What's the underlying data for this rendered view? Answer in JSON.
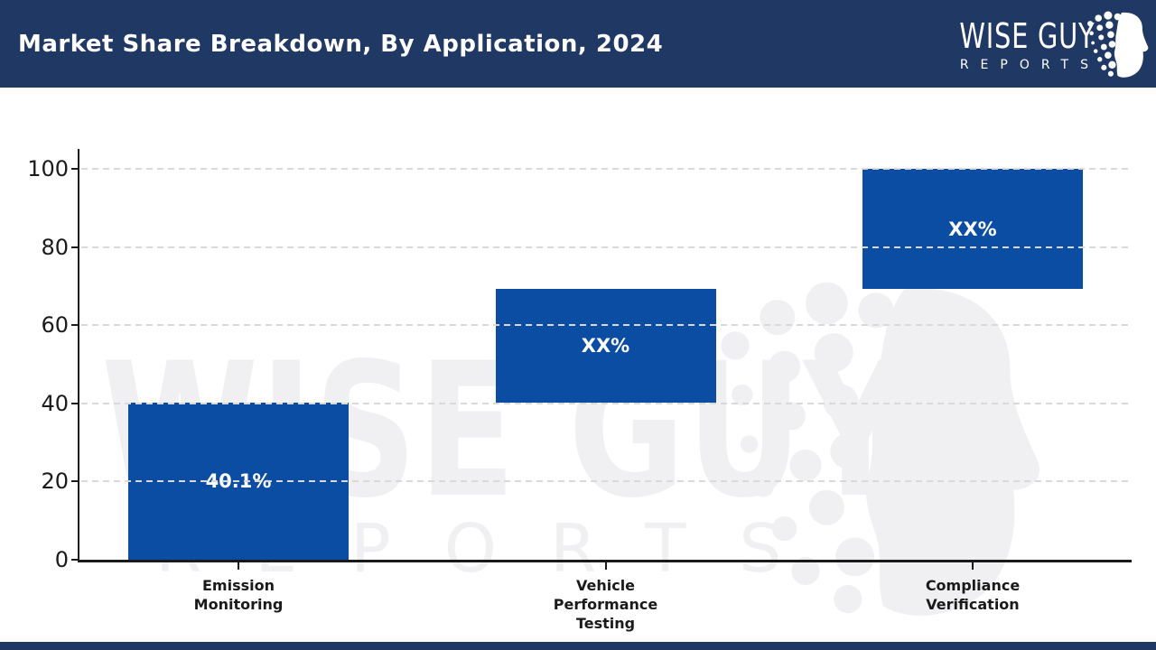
{
  "header": {
    "title": "Market Share Breakdown, By Application, 2024",
    "logo": {
      "wordmark": "WISE GUY",
      "subtitle": "REPORTS"
    }
  },
  "watermark": {
    "wordmark": "WISE GUY",
    "subtitle": "REPORTS"
  },
  "chart_data": {
    "type": "bar",
    "subtype": "floating-segment-waterfall",
    "title": "Market Share Breakdown, By Application, 2024",
    "categories": [
      [
        "Emission",
        "Monitoring"
      ],
      [
        "Vehicle",
        "Performance",
        "Testing"
      ],
      [
        "Compliance",
        "Verification"
      ]
    ],
    "series": [
      {
        "name": "Market share (%)",
        "segments": [
          {
            "category": "Emission Monitoring",
            "start": 0,
            "end": 40.1,
            "label": "40.1%"
          },
          {
            "category": "Vehicle Performance Testing",
            "start": 40.1,
            "end": 69.2,
            "label": "XX%"
          },
          {
            "category": "Compliance Verification",
            "start": 69.2,
            "end": 100,
            "label": "XX%"
          }
        ]
      }
    ],
    "ylim": [
      0,
      100
    ],
    "yticks": [
      0,
      20,
      40,
      60,
      80,
      100
    ],
    "xlabel": "",
    "ylabel": "",
    "grid": "horizontal-dashed",
    "legend": "none"
  },
  "colors": {
    "page_bg": "#ffffff",
    "header_bg": "#203864",
    "footer_bg": "#203864",
    "bar": "#0b4da2",
    "bar_label": "#ffffff",
    "axis": "#1a1a1a",
    "tick_label": "#1a1a1a",
    "grid": "#d9d9d9",
    "watermark": "#f0f0f2",
    "title_text": "#ffffff"
  }
}
